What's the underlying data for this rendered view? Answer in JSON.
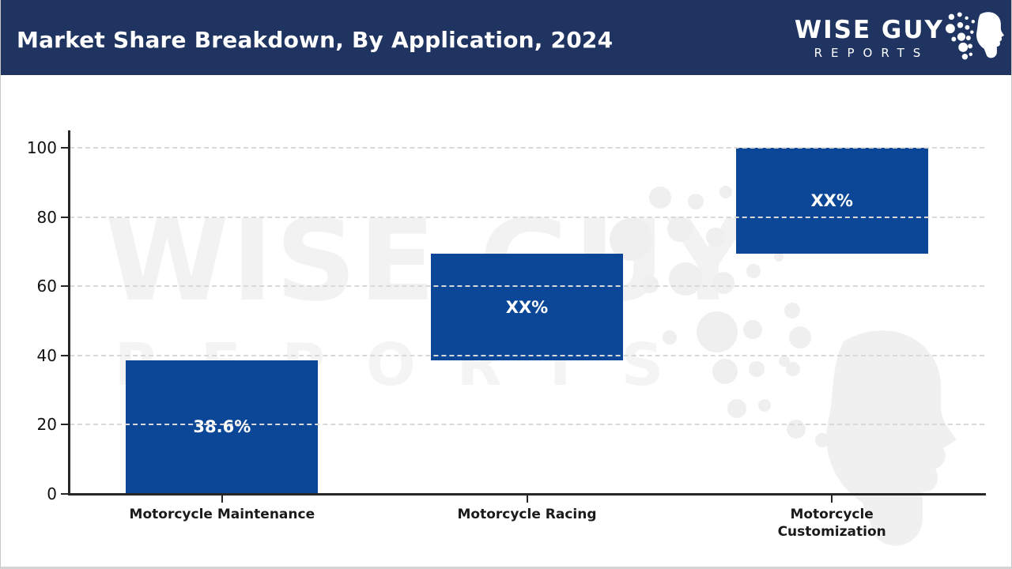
{
  "header": {
    "title": "Market Share Breakdown, By Application, 2024",
    "logo_line1": "WISE GUY",
    "logo_line2": "REPORTS"
  },
  "watermark": {
    "line1": "WISE GUY",
    "line2": "REPORTS"
  },
  "chart_data": {
    "type": "bar",
    "variant": "floating-waterfall",
    "title": "Market Share Breakdown, By Application, 2024",
    "categories": [
      "Motorcycle Maintenance",
      "Motorcycle Racing",
      "Motorcycle Customization"
    ],
    "segments": [
      {
        "category": "Motorcycle Maintenance",
        "start": 0,
        "end": 38.6,
        "label": "38.6%"
      },
      {
        "category": "Motorcycle Racing",
        "start": 38.6,
        "end": 69.3,
        "label": "XX%"
      },
      {
        "category": "Motorcycle Customization",
        "start": 69.3,
        "end": 100,
        "label": "XX%"
      }
    ],
    "values": [
      38.6,
      30.7,
      30.7
    ],
    "xlabel": "",
    "ylabel": "",
    "ylim": [
      0,
      100
    ],
    "yticks": [
      0,
      20,
      40,
      60,
      80,
      100
    ],
    "grid": "horizontal-dashed",
    "grid_above_bars": true,
    "legend": "none",
    "colors": {
      "bar": "#0b4796",
      "bar_label": "#ffffff",
      "header_bg": "#1f3460",
      "axis": "#262626",
      "gridline": "#d9d9d9",
      "tick_label": "#111111",
      "watermark": "#f2f2f2"
    }
  }
}
